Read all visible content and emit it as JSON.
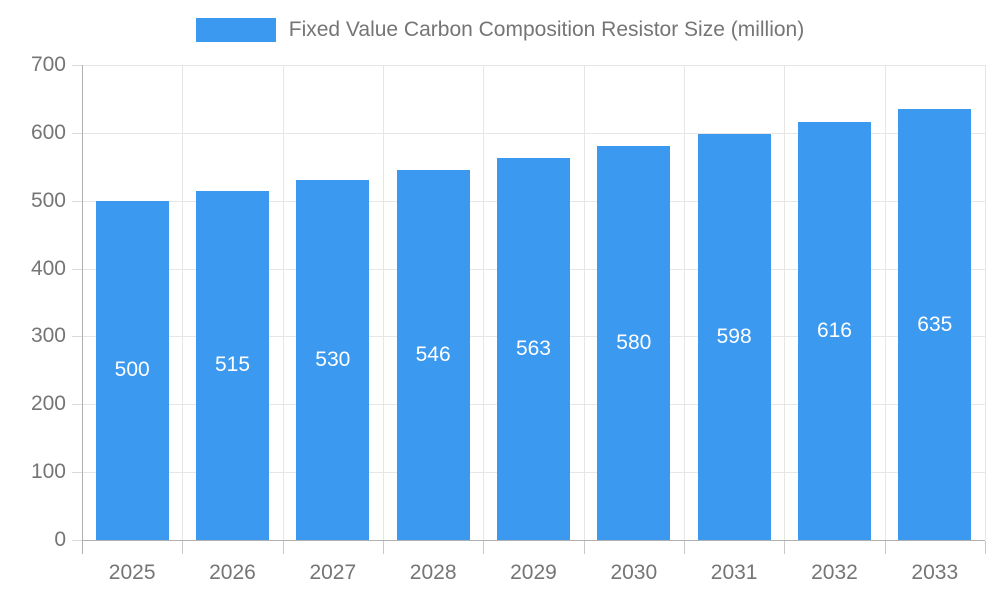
{
  "colors": {
    "bar": "#3B99F0",
    "grid": "#E6E6E6",
    "axis": "#B0B0B0",
    "tick": "#C9C9C9",
    "label_text": "#757575",
    "bar_value_text": "#FFFFFF",
    "background": "#FFFFFF"
  },
  "legend": {
    "swatch_color": "#3B99F0"
  },
  "chart_data": {
    "type": "bar",
    "title": "Fixed Value Carbon Composition Resistor Size (million)",
    "categories": [
      "2025",
      "2026",
      "2027",
      "2028",
      "2029",
      "2030",
      "2031",
      "2032",
      "2033"
    ],
    "values": [
      500,
      515,
      530,
      546,
      563,
      580,
      598,
      616,
      635
    ],
    "xlabel": "",
    "ylabel": "",
    "ylim": [
      0,
      700
    ],
    "ytick_interval": 100,
    "yticks": [
      0,
      100,
      200,
      300,
      400,
      500,
      600,
      700
    ],
    "grid": true,
    "grid_vertical": true,
    "legend_position": "top",
    "value_labels": "inside-center"
  }
}
